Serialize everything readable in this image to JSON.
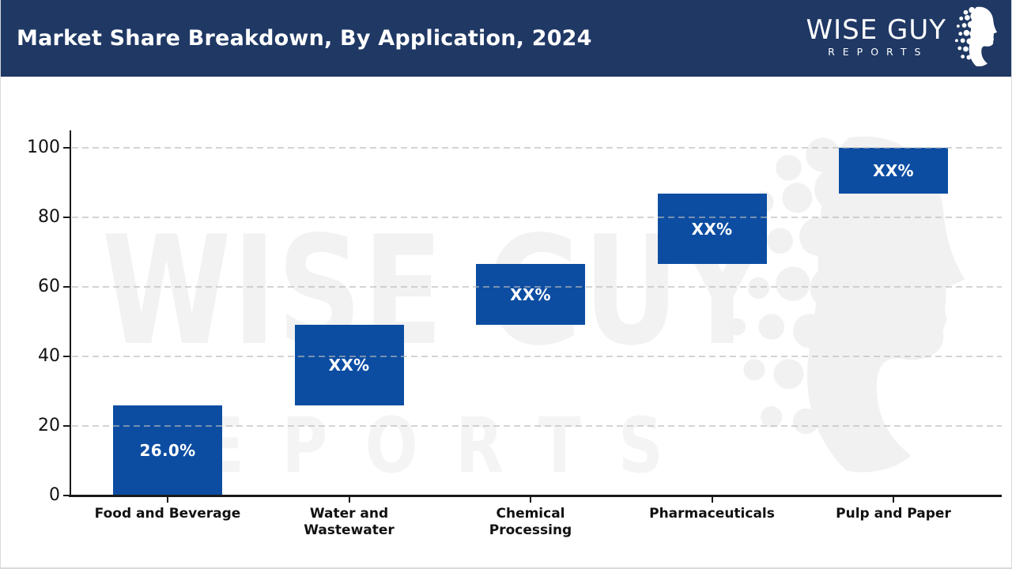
{
  "header": {
    "title": "Market Share Breakdown, By Application, 2024",
    "bg_color": "#1F3864",
    "logo": {
      "name": "WISE GUY",
      "tagline": "REPORTS",
      "face_icon": "dotted-head-profile"
    }
  },
  "watermark": {
    "line1": "WISE GUY",
    "line2": "REPORTS"
  },
  "chart_data": {
    "type": "bar",
    "variant": "waterfall-cumulative",
    "title": "Market Share Breakdown, By Application, 2024",
    "categories": [
      "Food and Beverage",
      "Water and Wastewater",
      "Chemical Processing",
      "Pharmaceuticals",
      "Pulp and Paper"
    ],
    "categories_lines": [
      [
        "Food and Beverage"
      ],
      [
        "Water and",
        "Wastewater"
      ],
      [
        "Chemical",
        "Processing"
      ],
      [
        "Pharmaceuticals"
      ],
      [
        "Pulp and Paper"
      ]
    ],
    "series": [
      {
        "name": "Market Share",
        "segments": [
          {
            "category": "Food and Beverage",
            "start": 0,
            "end": 26,
            "label": "26.0%"
          },
          {
            "category": "Water and Wastewater",
            "start": 26,
            "end": 49,
            "label": "XX%"
          },
          {
            "category": "Chemical Processing",
            "start": 49,
            "end": 66.5,
            "label": "XX%"
          },
          {
            "category": "Pharmaceuticals",
            "start": 66.5,
            "end": 86.8,
            "label": "XX%"
          },
          {
            "category": "Pulp and Paper",
            "start": 86.8,
            "end": 100,
            "label": "XX%"
          }
        ]
      }
    ],
    "bar_color": "#0C4DA2",
    "label_color": "#ffffff",
    "xlabel": "",
    "ylabel": "",
    "ylim": [
      0,
      100
    ],
    "yticks": [
      0,
      20,
      40,
      60,
      80,
      100
    ],
    "grid": "horizontal dashed, drawn over bars",
    "legend": "none"
  }
}
